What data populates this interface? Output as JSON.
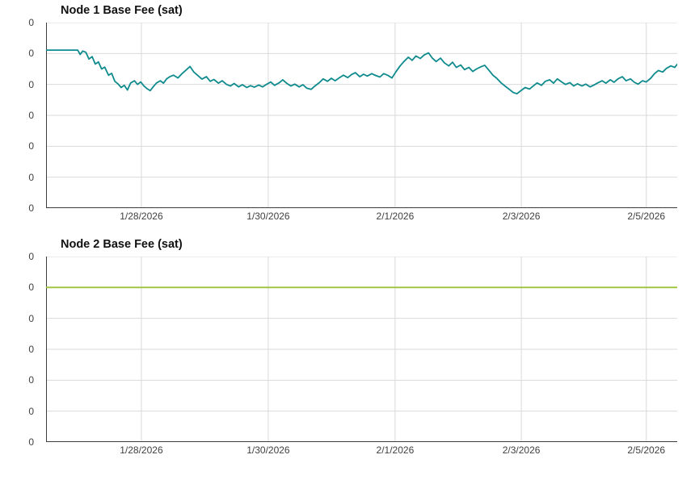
{
  "page": {
    "background": "#ffffff"
  },
  "chart_data": [
    {
      "type": "line",
      "title": "Node 1 Base Fee (sat)",
      "xlabel": "",
      "ylabel": "",
      "ylim": [
        0,
        6
      ],
      "grid": true,
      "gridline_color": "#d9d9d9",
      "axis_color": "#3c3c3c",
      "y_tick_labels": [
        "0",
        "0",
        "0",
        "0",
        "0",
        "0",
        "0"
      ],
      "x_tick_labels": [
        "1/28/2026",
        "1/30/2026",
        "2/1/2026",
        "2/3/2026",
        "2/5/2026"
      ],
      "x_tick_positions": [
        0.151,
        0.352,
        0.553,
        0.753,
        0.951
      ],
      "legend": "none",
      "series": [
        {
          "name": "Node 1 Base Fee",
          "color": "#0f8b8d",
          "points": [
            [
              0.0,
              5.11
            ],
            [
              0.017,
              5.11
            ],
            [
              0.036,
              5.11
            ],
            [
              0.05,
              5.11
            ],
            [
              0.054,
              4.97
            ],
            [
              0.058,
              5.08
            ],
            [
              0.063,
              5.04
            ],
            [
              0.068,
              4.82
            ],
            [
              0.073,
              4.9
            ],
            [
              0.078,
              4.66
            ],
            [
              0.083,
              4.73
            ],
            [
              0.088,
              4.5
            ],
            [
              0.093,
              4.56
            ],
            [
              0.099,
              4.3
            ],
            [
              0.104,
              4.36
            ],
            [
              0.109,
              4.1
            ],
            [
              0.114,
              4.02
            ],
            [
              0.119,
              3.9
            ],
            [
              0.124,
              3.97
            ],
            [
              0.129,
              3.82
            ],
            [
              0.134,
              4.05
            ],
            [
              0.14,
              4.12
            ],
            [
              0.145,
              4.0
            ],
            [
              0.15,
              4.08
            ],
            [
              0.155,
              3.95
            ],
            [
              0.16,
              3.86
            ],
            [
              0.165,
              3.8
            ],
            [
              0.17,
              3.93
            ],
            [
              0.175,
              4.05
            ],
            [
              0.181,
              4.12
            ],
            [
              0.186,
              4.04
            ],
            [
              0.191,
              4.18
            ],
            [
              0.196,
              4.25
            ],
            [
              0.202,
              4.3
            ],
            [
              0.209,
              4.21
            ],
            [
              0.215,
              4.34
            ],
            [
              0.221,
              4.45
            ],
            [
              0.228,
              4.58
            ],
            [
              0.234,
              4.4
            ],
            [
              0.241,
              4.28
            ],
            [
              0.247,
              4.17
            ],
            [
              0.254,
              4.25
            ],
            [
              0.26,
              4.1
            ],
            [
              0.266,
              4.16
            ],
            [
              0.273,
              4.04
            ],
            [
              0.279,
              4.12
            ],
            [
              0.286,
              4.0
            ],
            [
              0.292,
              3.95
            ],
            [
              0.298,
              4.03
            ],
            [
              0.305,
              3.92
            ],
            [
              0.311,
              3.99
            ],
            [
              0.318,
              3.9
            ],
            [
              0.324,
              3.96
            ],
            [
              0.33,
              3.91
            ],
            [
              0.337,
              3.98
            ],
            [
              0.343,
              3.92
            ],
            [
              0.35,
              4.01
            ],
            [
              0.356,
              4.08
            ],
            [
              0.362,
              3.97
            ],
            [
              0.369,
              4.05
            ],
            [
              0.375,
              4.15
            ],
            [
              0.381,
              4.04
            ],
            [
              0.388,
              3.95
            ],
            [
              0.394,
              4.01
            ],
            [
              0.401,
              3.92
            ],
            [
              0.407,
              3.99
            ],
            [
              0.413,
              3.88
            ],
            [
              0.42,
              3.84
            ],
            [
              0.426,
              3.95
            ],
            [
              0.433,
              4.06
            ],
            [
              0.439,
              4.18
            ],
            [
              0.446,
              4.1
            ],
            [
              0.452,
              4.2
            ],
            [
              0.458,
              4.12
            ],
            [
              0.465,
              4.22
            ],
            [
              0.471,
              4.3
            ],
            [
              0.478,
              4.22
            ],
            [
              0.484,
              4.32
            ],
            [
              0.49,
              4.38
            ],
            [
              0.497,
              4.25
            ],
            [
              0.503,
              4.33
            ],
            [
              0.509,
              4.27
            ],
            [
              0.516,
              4.35
            ],
            [
              0.522,
              4.29
            ],
            [
              0.529,
              4.24
            ],
            [
              0.535,
              4.35
            ],
            [
              0.541,
              4.3
            ],
            [
              0.548,
              4.21
            ],
            [
              0.554,
              4.4
            ],
            [
              0.561,
              4.6
            ],
            [
              0.567,
              4.74
            ],
            [
              0.574,
              4.88
            ],
            [
              0.58,
              4.78
            ],
            [
              0.586,
              4.92
            ],
            [
              0.593,
              4.84
            ],
            [
              0.599,
              4.95
            ],
            [
              0.606,
              5.02
            ],
            [
              0.612,
              4.85
            ],
            [
              0.618,
              4.74
            ],
            [
              0.625,
              4.85
            ],
            [
              0.631,
              4.7
            ],
            [
              0.638,
              4.6
            ],
            [
              0.644,
              4.72
            ],
            [
              0.65,
              4.55
            ],
            [
              0.657,
              4.63
            ],
            [
              0.663,
              4.48
            ],
            [
              0.67,
              4.55
            ],
            [
              0.676,
              4.42
            ],
            [
              0.682,
              4.5
            ],
            [
              0.689,
              4.57
            ],
            [
              0.695,
              4.62
            ],
            [
              0.702,
              4.45
            ],
            [
              0.708,
              4.3
            ],
            [
              0.714,
              4.2
            ],
            [
              0.721,
              4.05
            ],
            [
              0.727,
              3.95
            ],
            [
              0.734,
              3.84
            ],
            [
              0.74,
              3.74
            ],
            [
              0.746,
              3.7
            ],
            [
              0.753,
              3.81
            ],
            [
              0.759,
              3.9
            ],
            [
              0.766,
              3.85
            ],
            [
              0.772,
              3.95
            ],
            [
              0.778,
              4.05
            ],
            [
              0.785,
              3.97
            ],
            [
              0.791,
              4.1
            ],
            [
              0.798,
              4.15
            ],
            [
              0.804,
              4.04
            ],
            [
              0.81,
              4.18
            ],
            [
              0.817,
              4.08
            ],
            [
              0.823,
              4.0
            ],
            [
              0.83,
              4.06
            ],
            [
              0.836,
              3.95
            ],
            [
              0.842,
              4.02
            ],
            [
              0.849,
              3.95
            ],
            [
              0.855,
              4.01
            ],
            [
              0.862,
              3.92
            ],
            [
              0.868,
              3.98
            ],
            [
              0.874,
              4.05
            ],
            [
              0.881,
              4.12
            ],
            [
              0.887,
              4.04
            ],
            [
              0.894,
              4.15
            ],
            [
              0.9,
              4.07
            ],
            [
              0.906,
              4.18
            ],
            [
              0.913,
              4.25
            ],
            [
              0.919,
              4.12
            ],
            [
              0.926,
              4.18
            ],
            [
              0.932,
              4.07
            ],
            [
              0.938,
              4.01
            ],
            [
              0.945,
              4.12
            ],
            [
              0.951,
              4.08
            ],
            [
              0.958,
              4.2
            ],
            [
              0.964,
              4.35
            ],
            [
              0.97,
              4.45
            ],
            [
              0.977,
              4.4
            ],
            [
              0.983,
              4.52
            ],
            [
              0.99,
              4.6
            ],
            [
              0.996,
              4.55
            ],
            [
              1.0,
              4.65
            ]
          ]
        }
      ]
    },
    {
      "type": "line",
      "title": "Node 2 Base Fee (sat)",
      "xlabel": "",
      "ylabel": "",
      "ylim": [
        0,
        6
      ],
      "grid": true,
      "gridline_color": "#d9d9d9",
      "axis_color": "#3c3c3c",
      "y_tick_labels": [
        "0",
        "0",
        "0",
        "0",
        "0",
        "0",
        "0"
      ],
      "x_tick_labels": [
        "1/28/2026",
        "1/30/2026",
        "2/1/2026",
        "2/3/2026",
        "2/5/2026"
      ],
      "x_tick_positions": [
        0.151,
        0.352,
        0.553,
        0.753,
        0.951
      ],
      "legend": "none",
      "series": [
        {
          "name": "Node 2 Base Fee",
          "color": "#9cc43a",
          "points": [
            [
              0.0,
              5.0
            ],
            [
              1.0,
              5.0
            ]
          ]
        }
      ]
    }
  ]
}
